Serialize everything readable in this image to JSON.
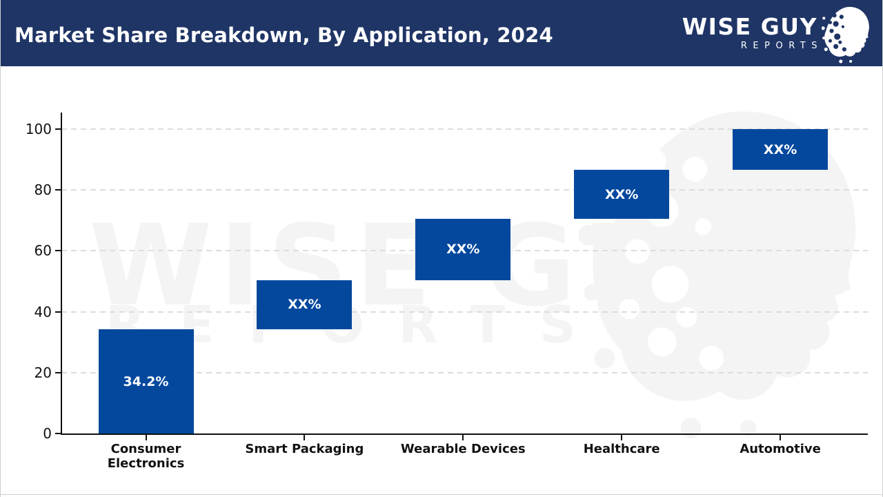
{
  "header": {
    "title": "Market Share Breakdown, By Application, 2024",
    "bg_color": "#1f3566",
    "logo": {
      "line1": "WISE GUY",
      "line2": "REPORTS"
    }
  },
  "watermark": {
    "line1": "WISE GUY",
    "line2": "REPORTS"
  },
  "chart_data": {
    "type": "bar",
    "subtype": "waterfall",
    "title": "Market Share Breakdown, By Application, 2024",
    "xlabel": "",
    "ylabel": "",
    "ylim": [
      0,
      100
    ],
    "yticks": [
      0,
      20,
      40,
      60,
      80,
      100
    ],
    "grid": "horizontal-dashed",
    "legend": "none",
    "bar_color": "#04489e",
    "bar_label_color": "#ffffff",
    "categories": [
      "Consumer Electronics",
      "Smart Packaging",
      "Wearable Devices",
      "Healthcare",
      "Automotive"
    ],
    "category_label_lines": [
      [
        "Consumer",
        "Electronics"
      ],
      [
        "Smart Packaging"
      ],
      [
        "Wearable Devices"
      ],
      [
        "Healthcare"
      ],
      [
        "Automotive"
      ]
    ],
    "series": [
      {
        "name": "Market Share",
        "segments": [
          {
            "category": "Consumer Electronics",
            "start": 0,
            "end": 34.2,
            "label": "34.2%"
          },
          {
            "category": "Smart Packaging",
            "start": 34.2,
            "end": 50.4,
            "label": "XX%"
          },
          {
            "category": "Wearable Devices",
            "start": 50.4,
            "end": 70.5,
            "label": "XX%"
          },
          {
            "category": "Healthcare",
            "start": 70.5,
            "end": 86.6,
            "label": "XX%"
          },
          {
            "category": "Automotive",
            "start": 86.6,
            "end": 100,
            "label": "XX%"
          }
        ]
      }
    ]
  }
}
